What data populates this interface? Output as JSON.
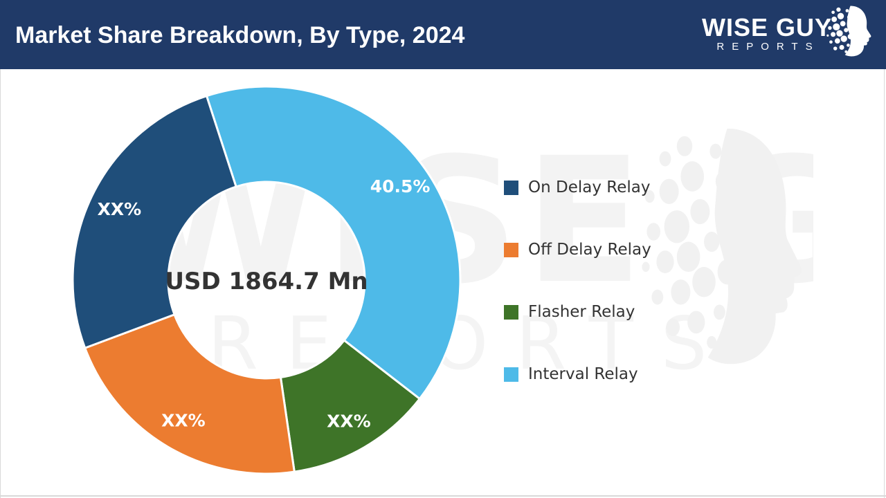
{
  "header": {
    "title": "Market Share Breakdown, By Type, 2024",
    "logo": {
      "line1": "WISE GUY",
      "line2": "REPORTS"
    }
  },
  "watermark": {
    "line1": "WISE GUY",
    "line2": "REPORTS"
  },
  "chart_data": {
    "type": "pie",
    "subtype": "donut",
    "title": "Market Share Breakdown, By Type, 2024",
    "center_label": "USD 1864.7 Mn",
    "units": "USD Mn",
    "start_angle_deg": -18,
    "direction": "clockwise-from-top",
    "segments": [
      {
        "label": "Interval Relay",
        "display_value": "40.5%",
        "pct": 40.5,
        "color": "#4ebae8"
      },
      {
        "label": "Flasher Relay",
        "display_value": "XX%",
        "pct": 12.2,
        "color": "#3e7428"
      },
      {
        "label": "Off Delay Relay",
        "display_value": "XX%",
        "pct": 21.6,
        "color": "#ec7c30"
      },
      {
        "label": "On Delay Relay",
        "display_value": "XX%",
        "pct": 25.7,
        "color": "#1f4e7a"
      }
    ],
    "legend": {
      "position": "right",
      "items": [
        {
          "label": "On Delay Relay",
          "color": "#1f4e7a"
        },
        {
          "label": "Off Delay Relay",
          "color": "#ec7c30"
        },
        {
          "label": "Flasher Relay",
          "color": "#3e7428"
        },
        {
          "label": "Interval Relay",
          "color": "#4ebae8"
        }
      ]
    }
  },
  "colors": {
    "header_bg": "#203a68",
    "text_dark": "#333333",
    "watermark": "#f3f3f3",
    "frame_border": "#d9d9d9"
  }
}
